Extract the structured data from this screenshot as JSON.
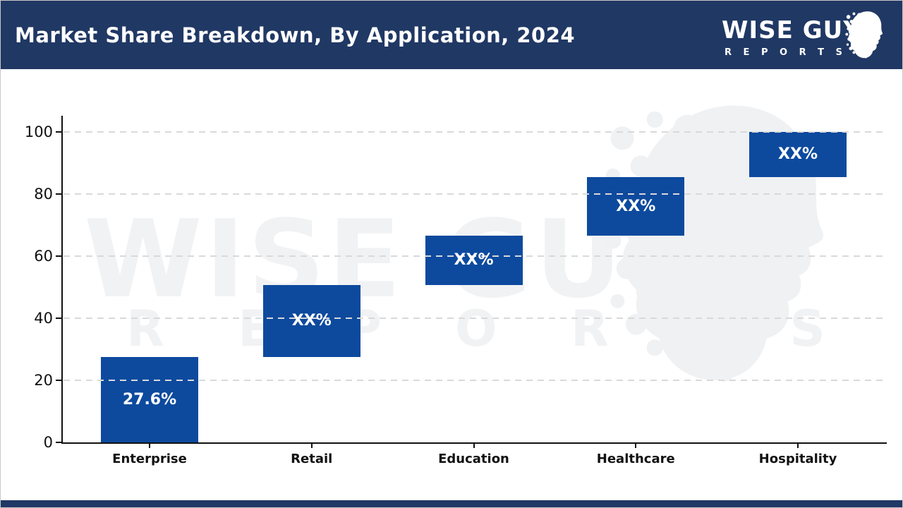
{
  "header": {
    "title": "Market Share Breakdown, By Application, 2024",
    "logo": {
      "name": "Wise Guy Reports",
      "line1": "WISE GUY",
      "line2": "R E P O R T S"
    }
  },
  "watermark": {
    "line1": "WISE GUY",
    "line2": "R E P O R T S"
  },
  "chart_data": {
    "type": "bar",
    "subtype": "waterfall-floating-bars",
    "title": "Market Share Breakdown, By Application, 2024",
    "categories": [
      "Enterprise",
      "Retail",
      "Education",
      "Healthcare",
      "Hospitality"
    ],
    "series": [
      {
        "name": "Market share (%)",
        "segments": [
          {
            "category": "Enterprise",
            "start": 0,
            "end": 27.6,
            "label": "27.6%"
          },
          {
            "category": "Retail",
            "start": 27.6,
            "end": 50.7,
            "label": "XX%"
          },
          {
            "category": "Education",
            "start": 50.7,
            "end": 66.6,
            "label": "XX%"
          },
          {
            "category": "Healthcare",
            "start": 66.6,
            "end": 85.5,
            "label": "XX%"
          },
          {
            "category": "Hospitality",
            "start": 85.5,
            "end": 100,
            "label": "XX%"
          }
        ]
      }
    ],
    "yticks": [
      0,
      20,
      40,
      60,
      80,
      100
    ],
    "ylim": [
      0,
      105
    ],
    "xlabel": "",
    "ylabel": "",
    "grid": "horizontal-dashed-above-bars",
    "legend": "none"
  },
  "colors": {
    "header_bg": "#203864",
    "footer_bg": "#203864",
    "bar": "#0d4a9e",
    "bar_label": "#ffffff",
    "grid": "#d9d9d9",
    "axis": "#111111",
    "watermark": "#f1f2f4",
    "page_bg": "#ffffff"
  }
}
